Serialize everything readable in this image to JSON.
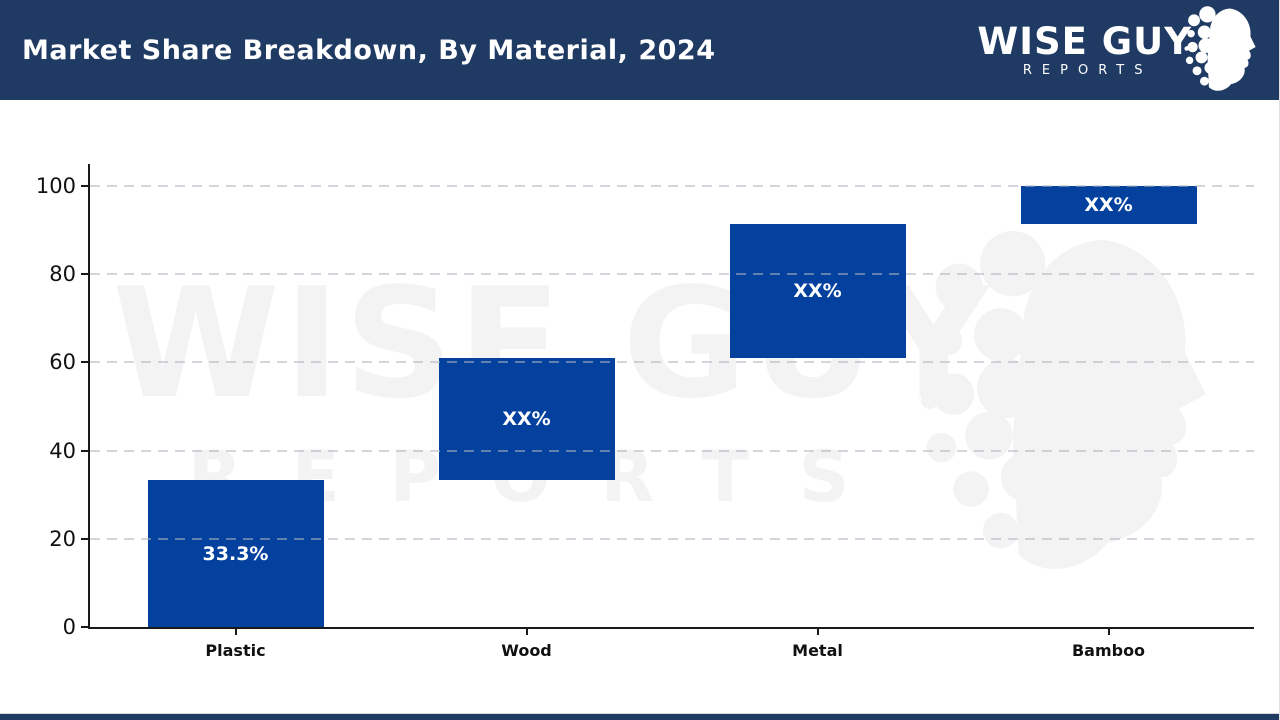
{
  "header": {
    "title": "Market Share Breakdown, By Material, 2024",
    "brand": {
      "name": "WISE GUY",
      "sub": "REPORTS"
    }
  },
  "watermark": {
    "line1": "WISE GUY",
    "line2": "REPORTS"
  },
  "chart_data": {
    "type": "bar",
    "subtype": "waterfall",
    "title": "Market Share Breakdown, By Material, 2024",
    "categories": [
      "Plastic",
      "Wood",
      "Metal",
      "Bamboo"
    ],
    "segments": [
      {
        "category": "Plastic",
        "start": 0,
        "end": 33.3,
        "label": "33.3%"
      },
      {
        "category": "Wood",
        "start": 33.3,
        "end": 61,
        "label": "XX%"
      },
      {
        "category": "Metal",
        "start": 61,
        "end": 91.5,
        "label": "XX%"
      },
      {
        "category": "Bamboo",
        "start": 91.5,
        "end": 100,
        "label": "XX%"
      }
    ],
    "yticks": [
      0,
      20,
      40,
      60,
      80,
      100
    ],
    "ylim": [
      0,
      105
    ],
    "grid": "dashed-horizontal",
    "legend": "none"
  },
  "colors": {
    "header_bg": "#1f3a63",
    "footer_bg": "#1f3a63",
    "bar": "#04419e",
    "axis": "#1a1a1a",
    "watermark": "#f3f3f3"
  }
}
